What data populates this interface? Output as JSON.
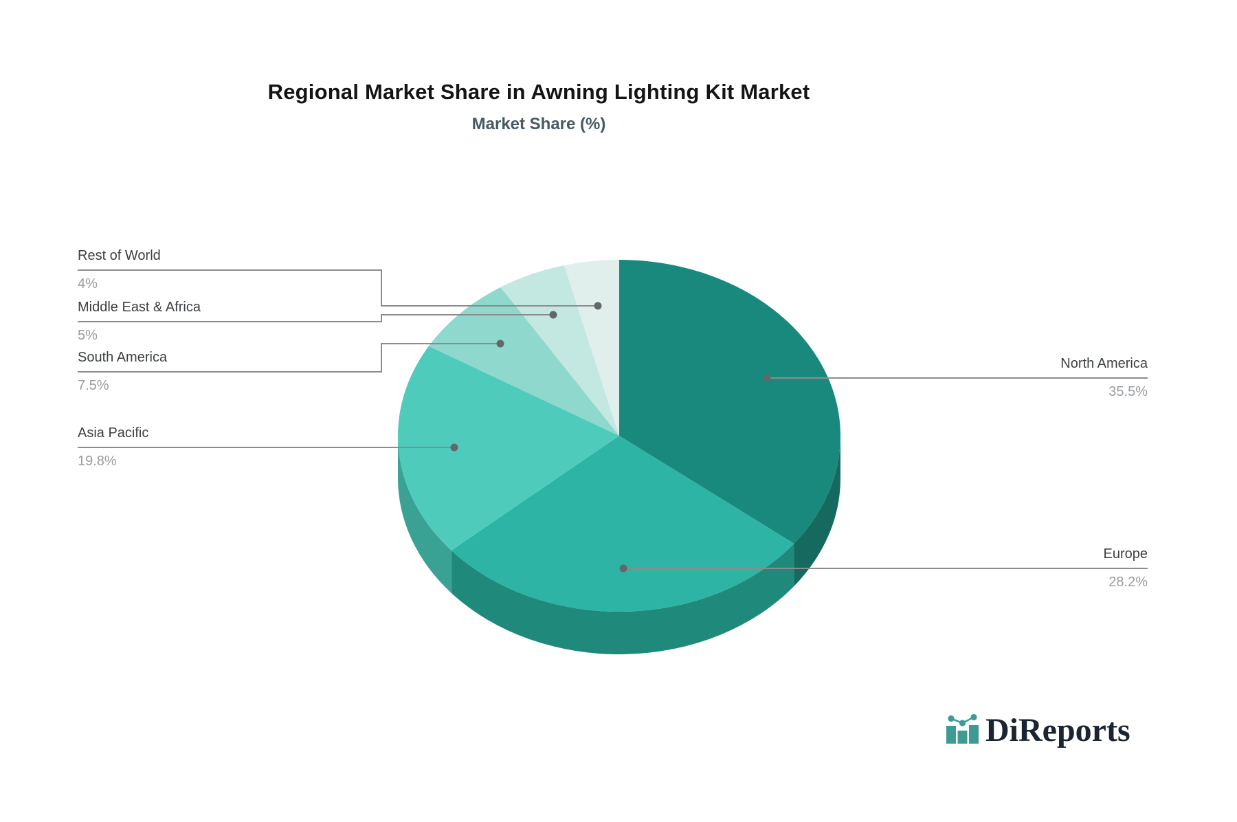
{
  "header": {
    "title": "Regional Market Share in Awning Lighting Kit Market",
    "subtitle": "Market Share (%)"
  },
  "chart_data": {
    "type": "pie",
    "title": "Regional Market Share in Awning Lighting Kit Market",
    "subtitle": "Market Share (%)",
    "unit": "%",
    "direction": "clockwise",
    "start_angle_deg": 0,
    "style_3d": true,
    "legend": "none",
    "label_style": "callout-leader-lines",
    "labels": [
      "North America",
      "Europe",
      "Asia Pacific",
      "South America",
      "Middle East & Africa",
      "Rest of World"
    ],
    "values": [
      35.5,
      28.2,
      19.8,
      7.5,
      5,
      4
    ],
    "display_values": [
      "35.5%",
      "28.2%",
      "19.8%",
      "7.5%",
      "5%",
      "4%"
    ],
    "colors": [
      "#19897e",
      "#2db4a4",
      "#4fcbbc",
      "#8fd8cd",
      "#c3e8e2",
      "#e0efec"
    ],
    "side_colors": [
      "#15695f",
      "#1f8a7c",
      "#3aa294",
      "#6fbcb2",
      "#9ecec7",
      "#b8d9d3"
    ],
    "callout_line_color": "#8c8c8c",
    "callout_dot_color": "#63666a",
    "label_text_color": "#3d4043",
    "value_text_color": "#999ca1"
  },
  "logo": {
    "text": "DiReports",
    "icon": "bar-line-chart-icon",
    "icon_color": "#3e9b94",
    "text_color": "#1a2433"
  }
}
